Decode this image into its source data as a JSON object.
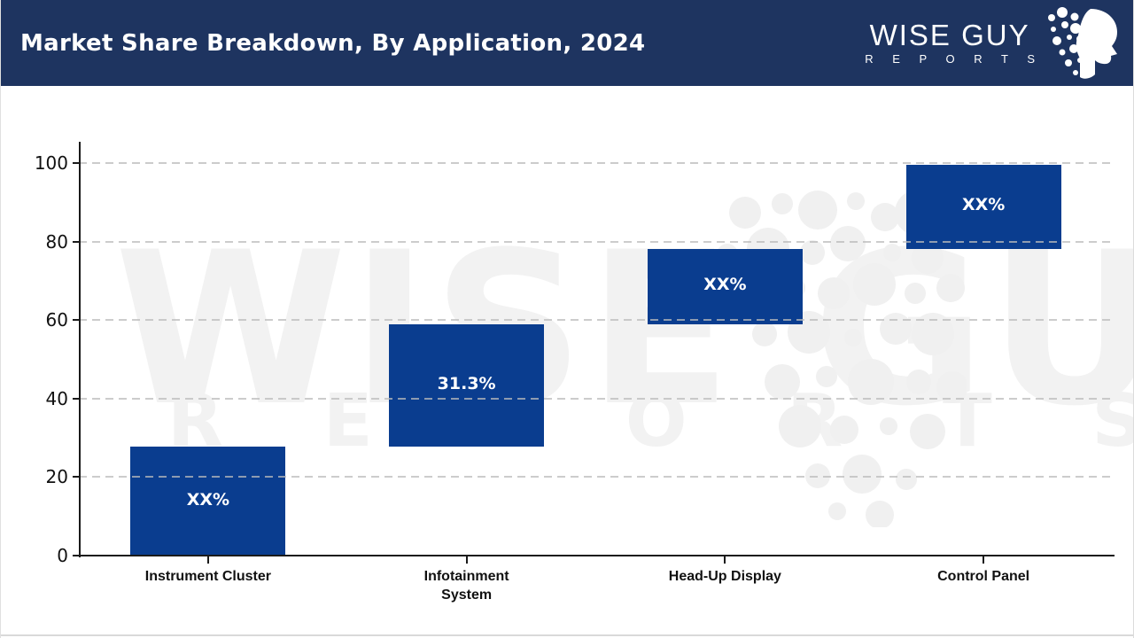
{
  "header": {
    "title": "Market Share Breakdown, By Application, 2024",
    "bg_color": "#1e3460",
    "logo": {
      "line1": "WISE GUY",
      "line2": "R E P O R T S"
    }
  },
  "watermark": {
    "line1": "WISE GUY",
    "line2": "R E P O R T S"
  },
  "chart_data": {
    "type": "bar",
    "subtype": "floating-segment (waterfall style)",
    "title": "Market Share Breakdown, By Application, 2024",
    "categories": [
      "Instrument Cluster",
      "Infotainment System",
      "Head-Up Display",
      "Control Panel"
    ],
    "bars": [
      {
        "category": "Instrument Cluster",
        "label_lines": "Instrument Cluster",
        "value_label": "XX%",
        "start": 0,
        "end": 27.7
      },
      {
        "category": "Infotainment System",
        "label_lines": "Infotainment\nSystem",
        "value_label": "31.3%",
        "start": 27.7,
        "end": 59.0
      },
      {
        "category": "Head-Up Display",
        "label_lines": "Head-Up Display",
        "value_label": "XX%",
        "start": 59.0,
        "end": 78.2
      },
      {
        "category": "Control Panel",
        "label_lines": "Control Panel",
        "value_label": "XX%",
        "start": 78.2,
        "end": 99.6
      }
    ],
    "yticks": [
      0,
      20,
      40,
      60,
      80,
      100
    ],
    "ylim": [
      0,
      105.5
    ],
    "bar_color": "#0a3d8f",
    "grid_color": "#bbbbbb",
    "grid_style": "dashed horizontal, drawn above bars",
    "legend": "none"
  }
}
